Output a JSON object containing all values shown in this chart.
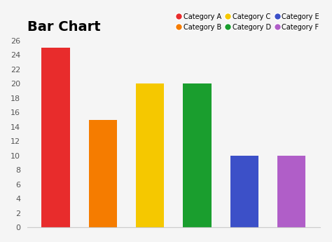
{
  "title": "Bar Chart",
  "categories": [
    "Category A",
    "Category B",
    "Category C",
    "Category D",
    "Category E",
    "Category F"
  ],
  "values": [
    25,
    15,
    20,
    20,
    10,
    10
  ],
  "bar_colors": [
    "#e82c2c",
    "#f57c00",
    "#f5c800",
    "#1a9e2e",
    "#3c50c8",
    "#b05ec8"
  ],
  "legend_dot_colors": [
    "#e82c2c",
    "#f57c00",
    "#f5c800",
    "#1a9e2e",
    "#3c50c8",
    "#b05ec8"
  ],
  "ylim": [
    0,
    26
  ],
  "yticks": [
    0,
    2,
    4,
    6,
    8,
    10,
    12,
    14,
    16,
    18,
    20,
    22,
    24,
    26
  ],
  "title_fontsize": 14,
  "background_color": "#f5f5f5",
  "bar_width": 0.6,
  "legend_ncol": 3
}
